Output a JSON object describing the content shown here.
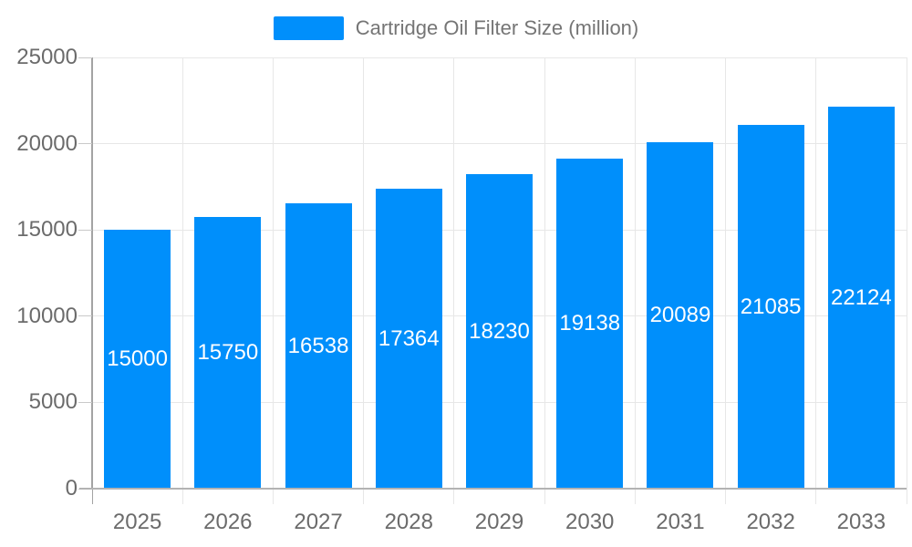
{
  "legend": {
    "label": "Cartridge Oil Filter Size (million)"
  },
  "chart_data": {
    "type": "bar",
    "title": "Cartridge Oil Filter Size (million)",
    "series_name": "Cartridge Oil Filter Size (million)",
    "categories": [
      "2025",
      "2026",
      "2027",
      "2028",
      "2029",
      "2030",
      "2031",
      "2032",
      "2033"
    ],
    "values": [
      15000,
      15750,
      16538,
      17364,
      18230,
      19138,
      20089,
      21085,
      22124
    ],
    "data_labels": [
      "15000",
      "15750",
      "16538",
      "17364",
      "18230",
      "19138",
      "20089",
      "21085",
      "22124"
    ],
    "xlabel": "",
    "ylabel": "",
    "ylim": [
      0,
      25000
    ],
    "yticks": [
      0,
      5000,
      10000,
      15000,
      20000,
      25000
    ],
    "ytick_labels": [
      "0",
      "5000",
      "10000",
      "15000",
      "20000",
      "25000"
    ],
    "grid": true,
    "legend_position": "top-center",
    "data_label_position": "inside-middle",
    "colors": {
      "bar": "#008FFB",
      "grid_light": "#e7e7e7",
      "axis_line": "#b3b3b3",
      "y_axis_line": "#a3a3a3",
      "tick_mark": "#c9c9c9",
      "tick_label": "#6b6b6b",
      "legend_text": "#757575",
      "data_label_text": "#ffffff",
      "background": "#ffffff"
    }
  }
}
